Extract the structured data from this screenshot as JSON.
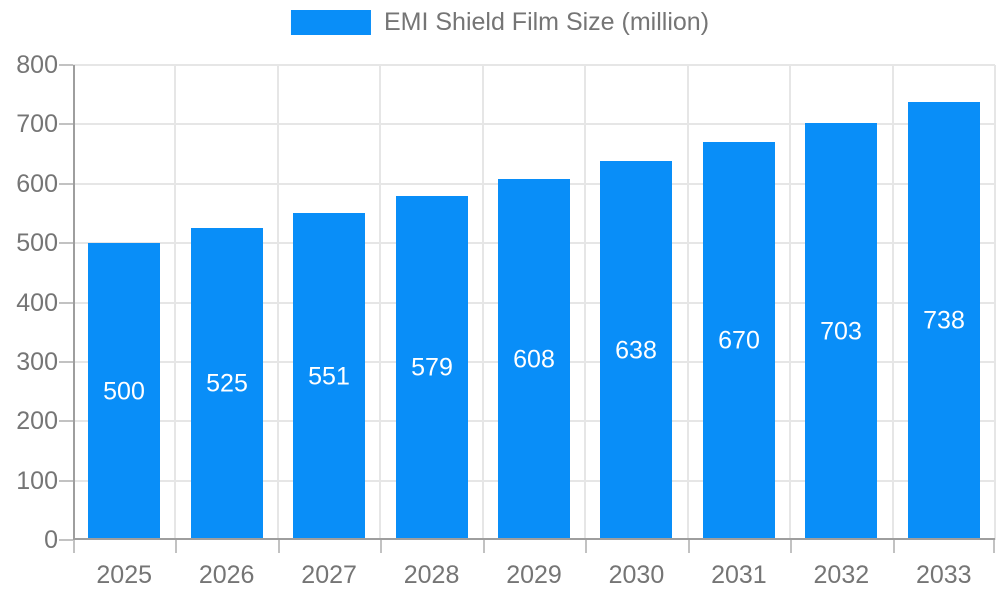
{
  "chart_data": {
    "type": "bar",
    "title": "EMI Shield Film Size (million)",
    "legend": {
      "position": "top",
      "entries": [
        "EMI Shield Film Size (million)"
      ]
    },
    "categories": [
      "2025",
      "2026",
      "2027",
      "2028",
      "2029",
      "2030",
      "2031",
      "2032",
      "2033"
    ],
    "values": [
      500,
      525,
      551,
      579,
      608,
      638,
      670,
      703,
      738
    ],
    "value_labels_visible": true,
    "xlabel": "",
    "ylabel": "",
    "ylim": [
      0,
      800
    ],
    "ytick_step": 100,
    "yticks": [
      0,
      100,
      200,
      300,
      400,
      500,
      600,
      700,
      800
    ],
    "grid": true,
    "colors": {
      "bar": "#098ef8",
      "value_label": "#ffffff",
      "axis_line": "#9e9e9e",
      "tick_mark": "#c2c2c2",
      "gridline": "#e6e6e6",
      "tick_label": "#757575",
      "legend_text": "#757575",
      "background": "#ffffff"
    }
  }
}
